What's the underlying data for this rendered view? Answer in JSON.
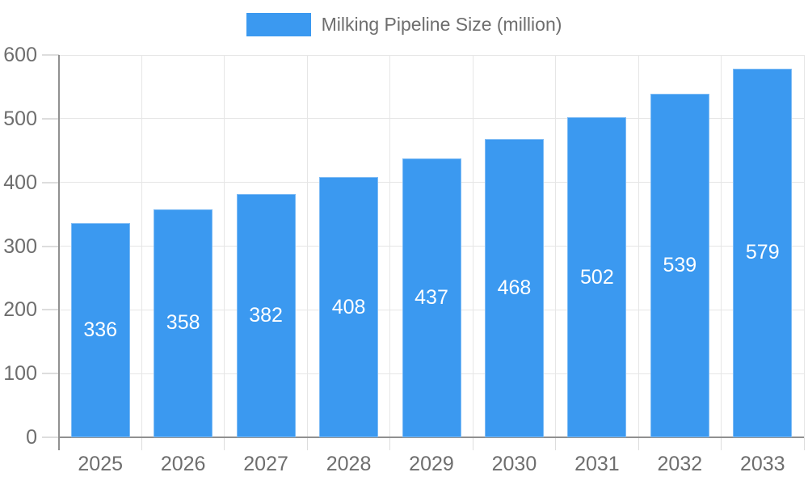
{
  "legend": {
    "label": "Milking Pipeline Size (million)"
  },
  "colors": {
    "bar": "#3B99F0",
    "bar_label": "#ffffff",
    "grid": "#e6e6e6",
    "axis": "#909090",
    "tick": "#dddddd",
    "tick_text": "#6e6e6e"
  },
  "chart_data": {
    "type": "bar",
    "title": "Milking Pipeline Size (million)",
    "categories": [
      "2025",
      "2026",
      "2027",
      "2028",
      "2029",
      "2030",
      "2031",
      "2032",
      "2033"
    ],
    "values": [
      336,
      358,
      382,
      408,
      437,
      468,
      502,
      539,
      579
    ],
    "xlabel": "",
    "ylabel": "",
    "ylim": [
      0,
      600
    ],
    "yticks": [
      0,
      100,
      200,
      300,
      400,
      500,
      600
    ],
    "grid": true,
    "legend_position": "top",
    "bar_label_position": "inside-center"
  }
}
